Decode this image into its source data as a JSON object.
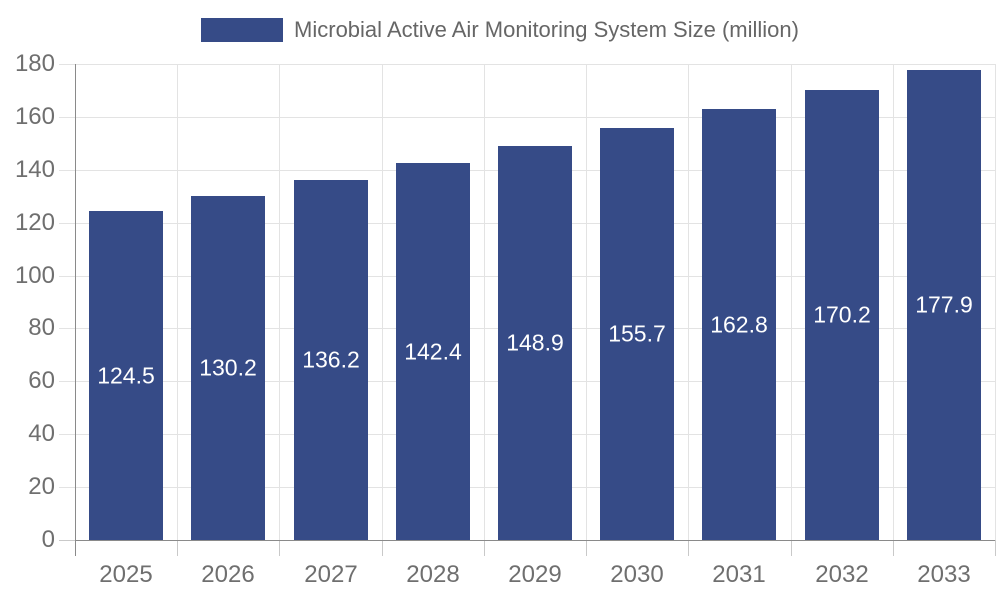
{
  "legend": {
    "label": "Microbial Active Air Monitoring System Size (million)"
  },
  "colors": {
    "bar": "#364B87",
    "grid": "#E3E3E3",
    "axis": "#8A8A8A",
    "tick": "#C9C9C9",
    "axis_text": "#6F6F6F",
    "legend_text": "#666666",
    "value_text": "#FFFFFF"
  },
  "chart_data": {
    "type": "bar",
    "title": "Microbial Active Air Monitoring System Size (million)",
    "categories": [
      "2025",
      "2026",
      "2027",
      "2028",
      "2029",
      "2030",
      "2031",
      "2032",
      "2033"
    ],
    "values": [
      124.5,
      130.2,
      136.2,
      142.4,
      148.9,
      155.7,
      162.8,
      170.2,
      177.9
    ],
    "value_labels": [
      "124.5",
      "130.2",
      "136.2",
      "142.4",
      "148.9",
      "155.7",
      "162.8",
      "170.2",
      "177.9"
    ],
    "xlabel": "",
    "ylabel": "",
    "ylim": [
      0,
      180
    ],
    "y_ticks": [
      0,
      20,
      40,
      60,
      80,
      100,
      120,
      140,
      160,
      180
    ],
    "grid": true,
    "legend_position": "top",
    "value_label_position": "center"
  }
}
